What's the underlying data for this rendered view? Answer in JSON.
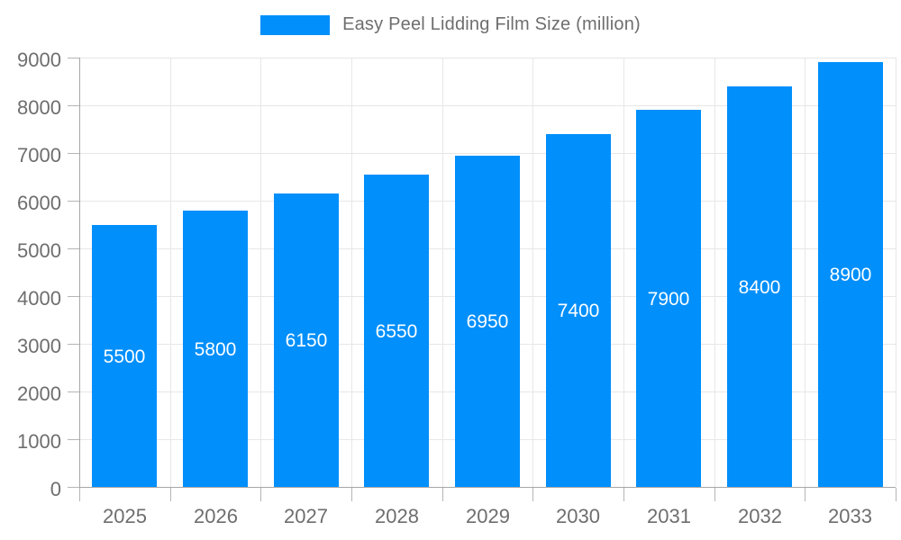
{
  "chart_data": {
    "type": "bar",
    "title": "Easy Peel Lidding Film Size (million)",
    "categories": [
      "2025",
      "2026",
      "2027",
      "2028",
      "2029",
      "2030",
      "2031",
      "2032",
      "2033"
    ],
    "values": [
      5500,
      5800,
      6150,
      6550,
      6950,
      7400,
      7900,
      8400,
      8900
    ],
    "xlabel": "",
    "ylabel": "",
    "ylim": [
      0,
      9000
    ],
    "ytick_step": 1000,
    "ytick_labels": [
      "0",
      "1000",
      "2000",
      "3000",
      "4000",
      "5000",
      "6000",
      "7000",
      "8000",
      "9000"
    ],
    "grid": true,
    "legend_position": "top",
    "value_labels": "centered-inside-bars"
  },
  "legend": {
    "label": "Easy Peel Lidding Film Size (million)"
  },
  "colors": {
    "bar": "#008FFB",
    "value_label": "#FFFFFF",
    "axis_text": "#6E6E6E",
    "gridline": "#E7E7E7",
    "axis_line": "#A6A6A6",
    "tick": "#B5B5B5",
    "background": "#FFFFFF"
  }
}
